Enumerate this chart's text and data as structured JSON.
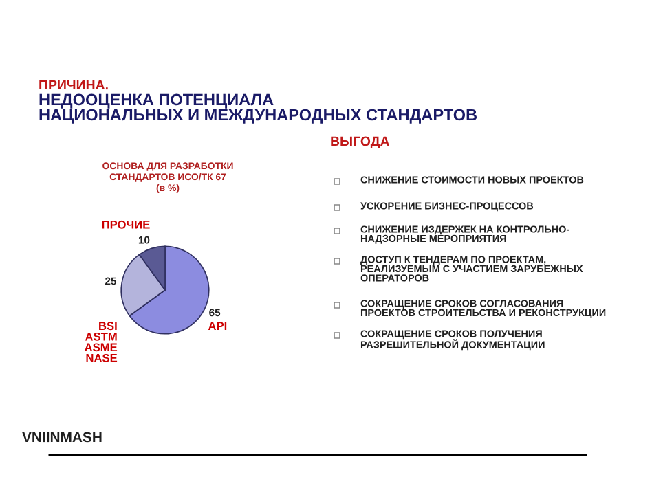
{
  "chart_data": {
    "type": "pie",
    "title": "ОСНОВА ДЛЯ РАЗРАБОТКИ\nСТАНДАРТОВ ИСО/ТК 67\n(в %)",
    "categories": [
      "API",
      "BSI\nASTM\nASME\nNASE",
      "ПРОЧИЕ"
    ],
    "values": [
      65,
      25,
      10
    ],
    "colors": [
      "#8c8ce0",
      "#b4b4dc",
      "#5a5a94"
    ],
    "data_labels": true,
    "annotations": [
      "ПРИЧИНА.",
      "НЕДООЦЕНКА ПОТЕНЦИАЛА\nНАЦИОНАЛЬНЫХ И МЕЖДУНАРОДНЫХ СТАНДАРТОВ",
      "ВЫГОДА",
      "СНИЖЕНИЕ СТОИМОСТИ НОВЫХ ПРОЕКТОВ",
      "УСКОРЕНИЕ БИЗНЕС-ПРОЦЕССОВ",
      "СНИЖЕНИЕ ИЗДЕРЖЕК НА КОНТРОЛЬНО-\nНАДЗОРНЫЕ МЕРОПРИЯТИЯ",
      "ДОСТУП К ТЕНДЕРАМ ПО ПРОЕКТАМ,\nРЕАЛИЗУЕМЫМ С УЧАСТИЕМ ЗАРУБЕЖНЫХ\nОПЕРАТОРОВ",
      "СОКРАЩЕНИЕ СРОКОВ СОГЛАСОВАНИЯ\nПРОЕКТОВ СТРОИТЕЛЬСТВА И РЕКОНСТРУКЦИИ",
      "СОКРАЩЕНИЕ СРОКОВ ПОЛУЧЕНИЯ\nРАЗРЕШИТЕЛЬНОЙ ДОКУМЕНТАЦИИ",
      "VNIINMASH"
    ]
  }
}
